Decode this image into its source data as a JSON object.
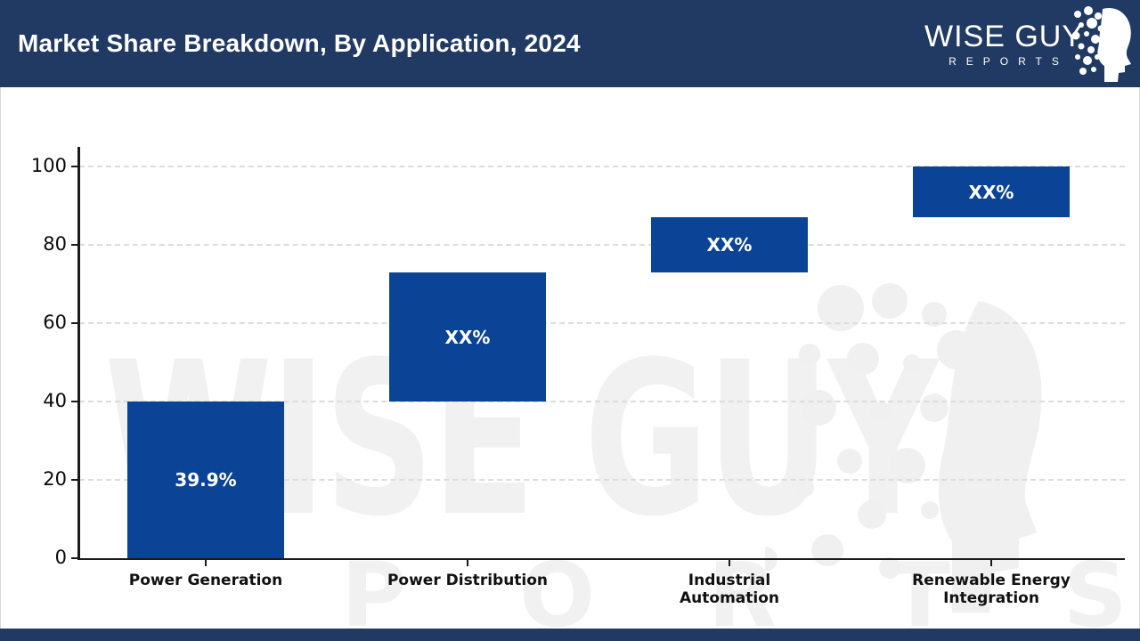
{
  "header": {
    "title": "Market Share Breakdown, By Application, 2024",
    "logo": {
      "line1": "WISE GUY",
      "line2": "REPORTS"
    }
  },
  "watermark": {
    "line1": "WISE GUY",
    "line2": "P O R T S"
  },
  "colors": {
    "header_bg": "#213A63",
    "bar": "#0B4396",
    "bar_label": "#ffffff",
    "gridline": "#dcdcdc",
    "axis": "#1a1a1a",
    "watermark": "#f1f1f1"
  },
  "chart_data": {
    "type": "bar",
    "subtype": "waterfall",
    "title": "Market Share Breakdown, By Application, 2024",
    "categories": [
      "Power Generation",
      "Power Distribution",
      "Industrial\nAutomation",
      "Renewable Energy\nIntegration"
    ],
    "segments": [
      {
        "category": "Power Generation",
        "start": 0,
        "end": 39.9,
        "label": "39.9%"
      },
      {
        "category": "Power Distribution",
        "start": 39.9,
        "end": 73,
        "label": "XX%"
      },
      {
        "category": "Industrial Automation",
        "start": 73,
        "end": 87,
        "label": "XX%"
      },
      {
        "category": "Renewable Energy Integration",
        "start": 87,
        "end": 100,
        "label": "XX%"
      }
    ],
    "yticks": [
      0,
      20,
      40,
      60,
      80,
      100
    ],
    "ylim": [
      0,
      105
    ],
    "xlabel": "",
    "ylabel": "",
    "grid": "horizontal-dashed",
    "legend": "none"
  }
}
